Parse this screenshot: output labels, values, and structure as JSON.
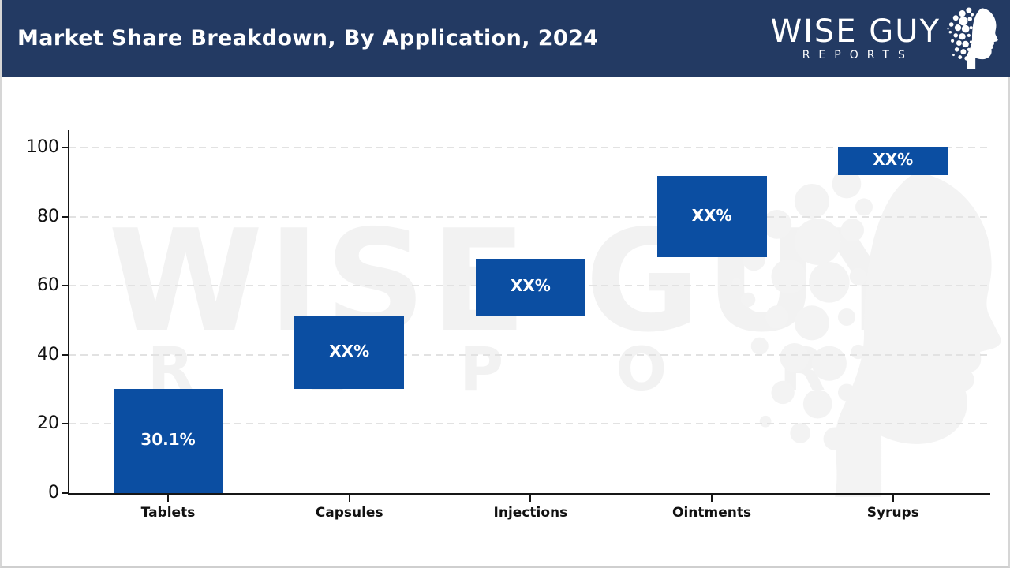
{
  "header": {
    "title": "Market Share Breakdown, By Application, 2024",
    "bg_color": "#233a63",
    "logo": {
      "line1": "WISE GUY",
      "line2": "REPORTS"
    }
  },
  "watermark": {
    "line1": "WISE GUY",
    "line2": "R E P O R T S"
  },
  "chart_data": {
    "type": "bar",
    "subtype": "waterfall",
    "title": "Market Share Breakdown, By Application, 2024",
    "xlabel": "",
    "ylabel": "",
    "categories": [
      "Tablets",
      "Capsules",
      "Injections",
      "Ointments",
      "Syrups"
    ],
    "segments": [
      {
        "category": "Tablets",
        "start": 0,
        "end": 30.1,
        "value": 30.1,
        "label": "30.1%"
      },
      {
        "category": "Capsules",
        "start": 30.1,
        "end": 51.1,
        "value": 21.0,
        "label": "XX%"
      },
      {
        "category": "Injections",
        "start": 51.4,
        "end": 67.9,
        "value": 16.5,
        "label": "XX%"
      },
      {
        "category": "Ointments",
        "start": 68.2,
        "end": 91.8,
        "value": 23.6,
        "label": "XX%"
      },
      {
        "category": "Syrups",
        "start": 91.9,
        "end": 100.2,
        "value": 8.3,
        "label": "XX%"
      }
    ],
    "yticks": [
      0,
      20,
      40,
      60,
      80,
      100
    ],
    "ylim": [
      0,
      105
    ],
    "grid": "horizontal dashed",
    "legend": "none",
    "bar_color": "#0b4ea2",
    "bar_label_color": "#ffffff",
    "axis_color": "#161616",
    "grid_color": "#e2e2e2"
  }
}
